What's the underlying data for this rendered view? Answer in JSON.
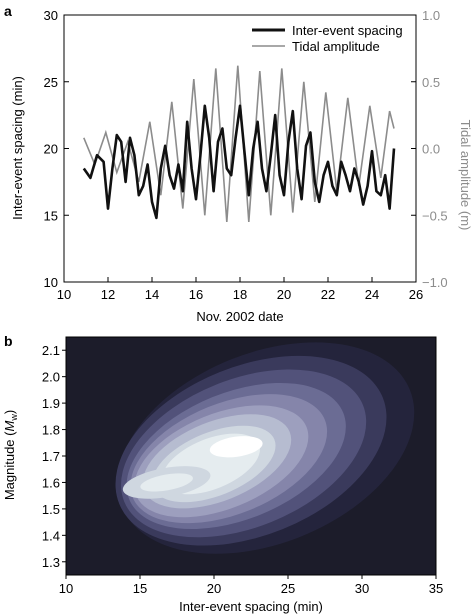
{
  "chart_data": [
    {
      "panel_label": "a",
      "type": "line",
      "xlabel": "Nov. 2002 date",
      "ylabel": "Inter-event spacing (min)",
      "y2label": "Tidal amplitude (m)",
      "xlim": [
        10,
        26
      ],
      "ylim": [
        10,
        30
      ],
      "y2lim": [
        -1.0,
        1.0
      ],
      "xticks": [
        "10",
        "12",
        "14",
        "16",
        "18",
        "20",
        "22",
        "24",
        "26"
      ],
      "yticks": [
        "10",
        "15",
        "20",
        "25",
        "30"
      ],
      "y2ticks": [
        "−1.0",
        "−0.5",
        "0.0",
        "0.5",
        "1.0"
      ],
      "legend_position": "top-right",
      "series": [
        {
          "name": "Inter-event spacing",
          "color": "#111111",
          "axis": "left",
          "x": [
            10.9,
            11.2,
            11.5,
            11.8,
            12.0,
            12.2,
            12.4,
            12.6,
            12.8,
            13.0,
            13.2,
            13.4,
            13.6,
            13.8,
            14.0,
            14.2,
            14.4,
            14.6,
            14.8,
            15.0,
            15.2,
            15.4,
            15.6,
            15.8,
            16.0,
            16.2,
            16.4,
            16.6,
            16.8,
            17.0,
            17.2,
            17.4,
            17.6,
            17.8,
            18.0,
            18.2,
            18.4,
            18.6,
            18.8,
            19.0,
            19.2,
            19.4,
            19.6,
            19.8,
            20.0,
            20.2,
            20.4,
            20.6,
            20.8,
            21.0,
            21.2,
            21.4,
            21.6,
            21.8,
            22.0,
            22.2,
            22.4,
            22.6,
            22.8,
            23.0,
            23.2,
            23.4,
            23.6,
            23.8,
            24.0,
            24.2,
            24.4,
            24.6,
            24.8,
            25.0
          ],
          "values": [
            18.5,
            17.8,
            19.5,
            19.0,
            15.5,
            18.5,
            21.0,
            20.5,
            17.5,
            20.8,
            19.5,
            16.5,
            17.2,
            18.8,
            16.0,
            14.8,
            18.5,
            20.2,
            18.0,
            17.0,
            18.8,
            16.8,
            22.0,
            18.5,
            16.2,
            19.5,
            23.2,
            20.8,
            16.8,
            20.5,
            21.5,
            18.5,
            18.0,
            20.8,
            23.2,
            19.8,
            16.5,
            20.0,
            22.0,
            18.5,
            16.8,
            19.5,
            22.5,
            18.0,
            16.5,
            20.5,
            22.8,
            18.5,
            16.2,
            20.2,
            21.2,
            17.5,
            16.0,
            18.0,
            19.0,
            17.2,
            16.5,
            19.0,
            18.0,
            16.8,
            18.5,
            17.5,
            15.8,
            17.2,
            19.8,
            16.8,
            16.5,
            18.0,
            15.5,
            20.0
          ]
        },
        {
          "name": "Tidal amplitude",
          "color": "#8c8c8c",
          "axis": "right",
          "x": [
            10.9,
            11.4,
            11.9,
            12.4,
            12.9,
            13.4,
            13.9,
            14.4,
            14.9,
            15.4,
            15.9,
            16.4,
            16.9,
            17.4,
            17.9,
            18.4,
            18.9,
            19.4,
            19.9,
            20.4,
            20.9,
            21.4,
            21.9,
            22.4,
            22.9,
            23.4,
            23.9,
            24.4,
            24.8,
            25.0
          ],
          "values": [
            0.08,
            -0.12,
            0.12,
            -0.18,
            0.05,
            -0.25,
            0.2,
            -0.35,
            0.35,
            -0.45,
            0.52,
            -0.5,
            0.6,
            -0.55,
            0.62,
            -0.55,
            0.58,
            -0.5,
            0.6,
            -0.48,
            0.5,
            -0.4,
            0.42,
            -0.32,
            0.38,
            -0.28,
            0.32,
            -0.22,
            0.28,
            0.15
          ]
        }
      ]
    },
    {
      "panel_label": "b",
      "type": "heatmap",
      "xlabel": "Inter-event spacing (min)",
      "ylabel": "Magnitude (M_w)",
      "ylabel_main": "Magnitude (",
      "ylabel_italic": "M",
      "ylabel_sub": "w",
      "ylabel_close": ")",
      "xlim": [
        10,
        35
      ],
      "ylim": [
        1.25,
        2.15
      ],
      "xticks": [
        "10",
        "15",
        "20",
        "25",
        "30",
        "35"
      ],
      "yticks": [
        "1.3",
        "1.4",
        "1.5",
        "1.6",
        "1.7",
        "1.8",
        "1.9",
        "2.0",
        "2.1"
      ],
      "colors": [
        "#1c1c2a",
        "#24243c",
        "#3a3a5c",
        "#52527a",
        "#6b6c94",
        "#8585aa",
        "#9d9fbe",
        "#b6bcd0",
        "#cfd7e0",
        "#e5ecef",
        "#ffffff"
      ]
    }
  ]
}
